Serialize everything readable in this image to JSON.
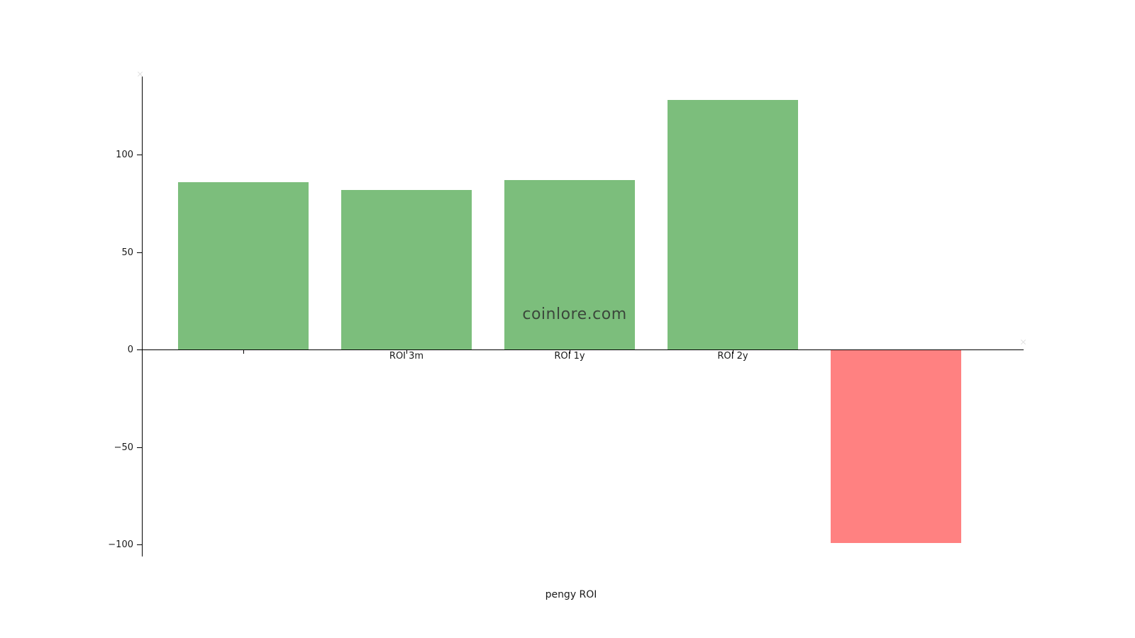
{
  "watermark": {
    "text": "coinlore.com"
  },
  "chart_data": {
    "type": "bar",
    "title": "",
    "xlabel": "pengy ROI",
    "ylabel": "",
    "categories": [
      "",
      "ROI 3m",
      "ROI 1y",
      "ROI 2y",
      ""
    ],
    "values": [
      86,
      82,
      87,
      128,
      -99
    ],
    "xticks_visible": [
      true,
      true,
      true,
      true,
      false
    ],
    "yticks": [
      -100,
      -50,
      0,
      50,
      100
    ],
    "ylim": [
      -106,
      140
    ],
    "grid": false,
    "legend": "none",
    "positive_color": "#7cbe7c",
    "negative_color": "#ff8181",
    "axis_color": "#000000",
    "text_color": "#1a1a1a"
  }
}
